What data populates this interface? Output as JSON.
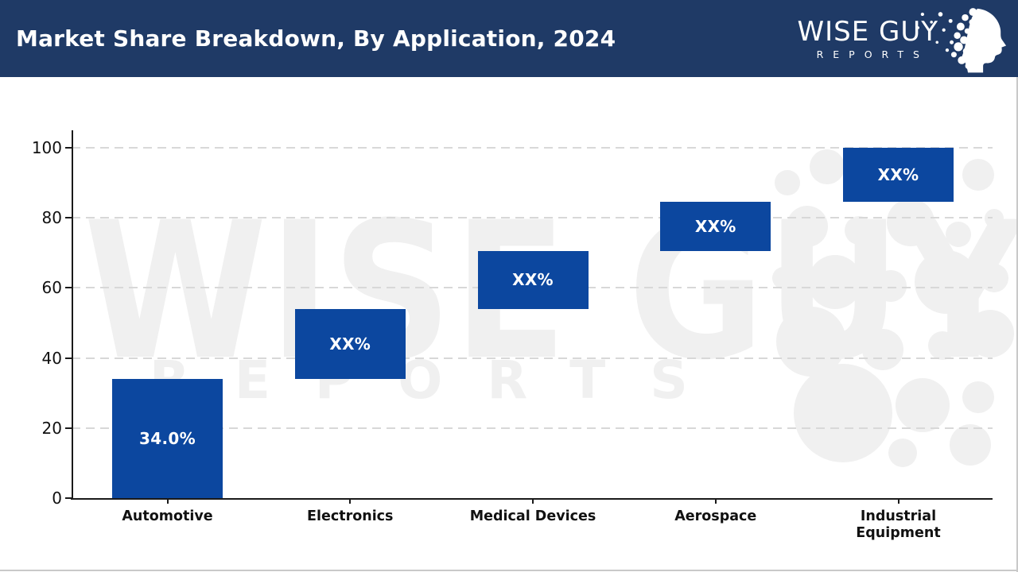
{
  "header": {
    "title": "Market Share Breakdown, By Application, 2024",
    "logo": {
      "line1": "WISE GUY",
      "line2": "REPORTS"
    }
  },
  "watermark": {
    "line1": "WISE GUY",
    "line2": "REPORTS"
  },
  "colors": {
    "header_bg": "#1f3a66",
    "bar": "#0c479f",
    "grid": "#d8d8d8",
    "watermark": "#f0f0f0"
  },
  "chart_data": {
    "type": "bar",
    "subtype": "waterfall",
    "title": "Market Share Breakdown, By Application, 2024",
    "categories": [
      "Automotive",
      "Electronics",
      "Medical Devices",
      "Aerospace",
      "Industrial Equipment"
    ],
    "tick_labels": [
      "Automotive",
      "Electronics",
      "Medical Devices",
      "Aerospace",
      "Industrial\nEquipment"
    ],
    "segments": [
      {
        "category": "Automotive",
        "start": 0,
        "end": 34,
        "label": "34.0%"
      },
      {
        "category": "Electronics",
        "start": 34,
        "end": 54,
        "label": "XX%"
      },
      {
        "category": "Medical Devices",
        "start": 54,
        "end": 70.5,
        "label": "XX%"
      },
      {
        "category": "Aerospace",
        "start": 70.5,
        "end": 84.5,
        "label": "XX%"
      },
      {
        "category": "Industrial Equipment",
        "start": 84.5,
        "end": 100,
        "label": "XX%"
      }
    ],
    "yticks": [
      0,
      20,
      40,
      60,
      80,
      100
    ],
    "ylim": [
      0,
      105
    ],
    "xlabel": "",
    "ylabel": "",
    "grid": "horizontal-dashed",
    "legend": false,
    "watermark": "WISE GUY REPORTS"
  }
}
